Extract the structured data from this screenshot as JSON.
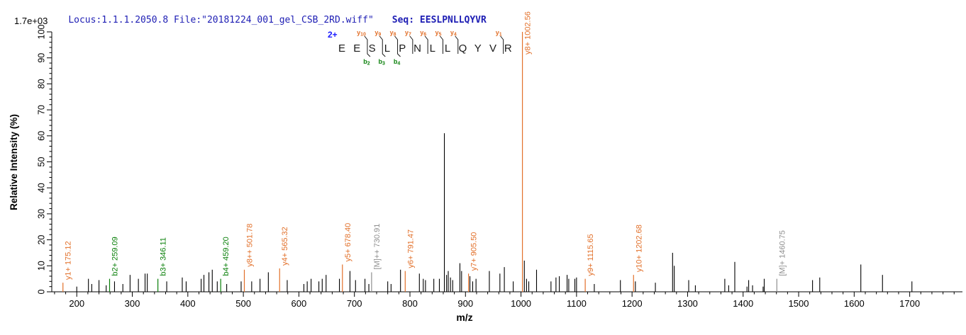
{
  "header": {
    "locus_text": "Locus:1.1.1.2050.8 File:\"20181224_001_gel_CSB_2RD.wiff\"",
    "seq_text": "Seq: EESLPNLLQYVR"
  },
  "colors": {
    "header_text": "#1e1eb4",
    "charge_label": "#1a1aff",
    "y_ion": "#e2702a",
    "b_ion": "#0a800a",
    "precursor": "#8f8f8f",
    "peak": "#000000",
    "axis": "#000000",
    "residue": "#1a1a1a"
  },
  "chart_data": {
    "type": "bar",
    "subtype": "ms2-stick-spectrum",
    "title": "",
    "xlabel": "m/z",
    "ylabel": "Relative  Intensity (%)",
    "y_scale_note": "1.7e+03",
    "xlim": [
      155,
      1795
    ],
    "ylim": [
      0,
      100
    ],
    "grid": false,
    "x_major_ticks": [
      200,
      300,
      400,
      500,
      600,
      700,
      800,
      900,
      1000,
      1100,
      1200,
      1300,
      1400,
      1500,
      1600,
      1700
    ],
    "x_minor_step": 20,
    "y_major_step": 10,
    "y_minor_step": 2,
    "precursor_charge": "2+",
    "sequence": [
      "E",
      "E",
      "S",
      "L",
      "P",
      "N",
      "L",
      "L",
      "Q",
      "Y",
      "V",
      "R"
    ],
    "cleavages": [
      {
        "before_index": 2,
        "y_label": "y10",
        "b_label": "b2"
      },
      {
        "before_index": 3,
        "y_label": "y9",
        "b_label": "b3"
      },
      {
        "before_index": 4,
        "y_label": "y8",
        "b_label": "b4"
      },
      {
        "before_index": 5,
        "y_label": "y7"
      },
      {
        "before_index": 6,
        "y_label": "y6"
      },
      {
        "before_index": 7,
        "y_label": "y5"
      },
      {
        "before_index": 8,
        "y_label": "y4"
      },
      {
        "before_index": 11,
        "y_label": "y1"
      }
    ],
    "peaks_columns": [
      "mz",
      "intensity_pct",
      "series",
      "label"
    ],
    "peaks": [
      [
        175.12,
        3.5,
        "y",
        "y1+ 175.12"
      ],
      [
        200,
        2
      ],
      [
        221,
        5
      ],
      [
        227,
        3
      ],
      [
        240,
        4.5
      ],
      [
        253,
        2.5
      ],
      [
        259.09,
        5,
        "b",
        "b2+ 259.09"
      ],
      [
        268,
        4
      ],
      [
        283,
        3
      ],
      [
        296,
        6.5
      ],
      [
        311,
        5
      ],
      [
        323,
        7
      ],
      [
        327,
        7
      ],
      [
        346.11,
        5,
        "b",
        "b3+ 346.11"
      ],
      [
        362,
        4
      ],
      [
        390,
        5.5
      ],
      [
        397,
        4
      ],
      [
        424,
        5
      ],
      [
        429,
        6.5
      ],
      [
        438,
        7.5
      ],
      [
        444,
        8.5
      ],
      [
        453,
        4
      ],
      [
        459.2,
        5,
        "b",
        "b4+ 459.20"
      ],
      [
        470,
        3
      ],
      [
        496,
        4
      ],
      [
        501.78,
        8.5,
        "y",
        "y8++ 501.78"
      ],
      [
        515,
        4
      ],
      [
        530,
        5
      ],
      [
        545,
        7.5
      ],
      [
        565.32,
        9,
        "y",
        "y4+ 565.32"
      ],
      [
        579,
        4.5
      ],
      [
        609,
        3
      ],
      [
        615,
        4
      ],
      [
        622,
        5
      ],
      [
        636,
        4
      ],
      [
        642,
        5
      ],
      [
        649,
        6.5
      ],
      [
        673,
        5
      ],
      [
        678.4,
        10.5,
        "y",
        "y5+ 678.40"
      ],
      [
        692,
        8
      ],
      [
        702,
        4.5
      ],
      [
        719,
        5
      ],
      [
        726,
        3
      ],
      [
        730.91,
        7.5,
        "M",
        "[M]++ 730.91"
      ],
      [
        760,
        4
      ],
      [
        766,
        3
      ],
      [
        783,
        8.5
      ],
      [
        791.47,
        8,
        "y",
        "y6+ 791.47"
      ],
      [
        817,
        7
      ],
      [
        824,
        5
      ],
      [
        828,
        4.5
      ],
      [
        843,
        5
      ],
      [
        853,
        5
      ],
      [
        862,
        61
      ],
      [
        866,
        6.5
      ],
      [
        869,
        8
      ],
      [
        873,
        5.5
      ],
      [
        877,
        4.5
      ],
      [
        890,
        11
      ],
      [
        893,
        8
      ],
      [
        905.5,
        7,
        "y",
        "y7+ 905.50"
      ],
      [
        908,
        6
      ],
      [
        913,
        4
      ],
      [
        919,
        5
      ],
      [
        943,
        8
      ],
      [
        962,
        7
      ],
      [
        970,
        9.5
      ],
      [
        986,
        4
      ],
      [
        1002.56,
        100,
        "y",
        "y8+ 1002.56"
      ],
      [
        1006,
        12
      ],
      [
        1010,
        5
      ],
      [
        1014,
        4
      ],
      [
        1028,
        8.5
      ],
      [
        1054,
        4
      ],
      [
        1063,
        5.5
      ],
      [
        1069,
        6
      ],
      [
        1083,
        6.5
      ],
      [
        1086,
        5
      ],
      [
        1097,
        5
      ],
      [
        1100,
        5.5
      ],
      [
        1115.65,
        5,
        "y",
        "y9+ 1115.65"
      ],
      [
        1132,
        3
      ],
      [
        1179,
        4.5
      ],
      [
        1202.68,
        6.5,
        "y",
        "y10+ 1202.68"
      ],
      [
        1206,
        4
      ],
      [
        1242,
        3.5
      ],
      [
        1273,
        15
      ],
      [
        1276,
        10
      ],
      [
        1302,
        4.5
      ],
      [
        1314,
        2.5
      ],
      [
        1367,
        5
      ],
      [
        1374,
        2.5
      ],
      [
        1385,
        11.5
      ],
      [
        1407,
        2
      ],
      [
        1410,
        4.5
      ],
      [
        1417,
        2.5
      ],
      [
        1436,
        2
      ],
      [
        1438,
        5
      ],
      [
        1460.75,
        5,
        "M",
        "[M]+ 1460.75"
      ],
      [
        1525,
        4.5
      ],
      [
        1538,
        5.5
      ],
      [
        1612,
        10.5
      ],
      [
        1651,
        6.5
      ],
      [
        1704,
        4
      ]
    ]
  }
}
